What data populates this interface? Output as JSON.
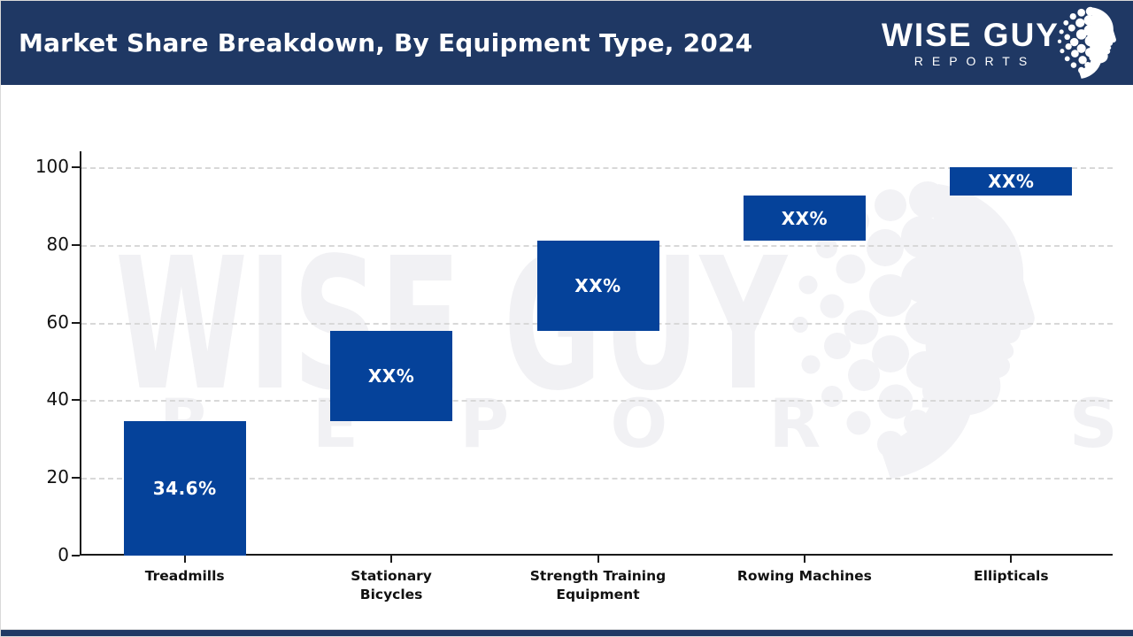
{
  "header": {
    "title": "Market Share Breakdown, By Equipment Type, 2024",
    "bg_color": "#1f3864",
    "text_color": "#ffffff",
    "logo": {
      "line1": "WISE GUY",
      "line2": "REPORTS"
    }
  },
  "watermark": {
    "line1": "WISE GUY",
    "line2": "R E P O R T S"
  },
  "chart_data": {
    "type": "bar",
    "subtype": "waterfall",
    "title": "Market Share Breakdown, By Equipment Type, 2024",
    "categories": [
      "Treadmills",
      "Stationary\nBicycles",
      "Strength Training\nEquipment",
      "Rowing Machines",
      "Ellipticals"
    ],
    "series": [
      {
        "name": "Market share (%)",
        "segments": [
          {
            "category": "Treadmills",
            "start": 0,
            "end": 34.6,
            "label": "34.6%"
          },
          {
            "category": "Stationary Bicycles",
            "start": 34.6,
            "end": 57.8,
            "label": "XX%"
          },
          {
            "category": "Strength Training Equipment",
            "start": 57.8,
            "end": 81.0,
            "label": "XX%"
          },
          {
            "category": "Rowing Machines",
            "start": 81.0,
            "end": 92.6,
            "label": "XX%"
          },
          {
            "category": "Ellipticals",
            "start": 92.6,
            "end": 100.0,
            "label": "XX%"
          }
        ]
      }
    ],
    "xlabel": "",
    "ylabel": "",
    "ylim": [
      0,
      100
    ],
    "yticks": [
      0,
      20,
      40,
      60,
      80,
      100
    ],
    "grid": "horizontal-dashed",
    "legend": "none",
    "bar_color": "#05429a",
    "bar_label_color": "#ffffff",
    "axis_color": "#1a1a1a",
    "gridline_color": "#d8d8d8"
  }
}
